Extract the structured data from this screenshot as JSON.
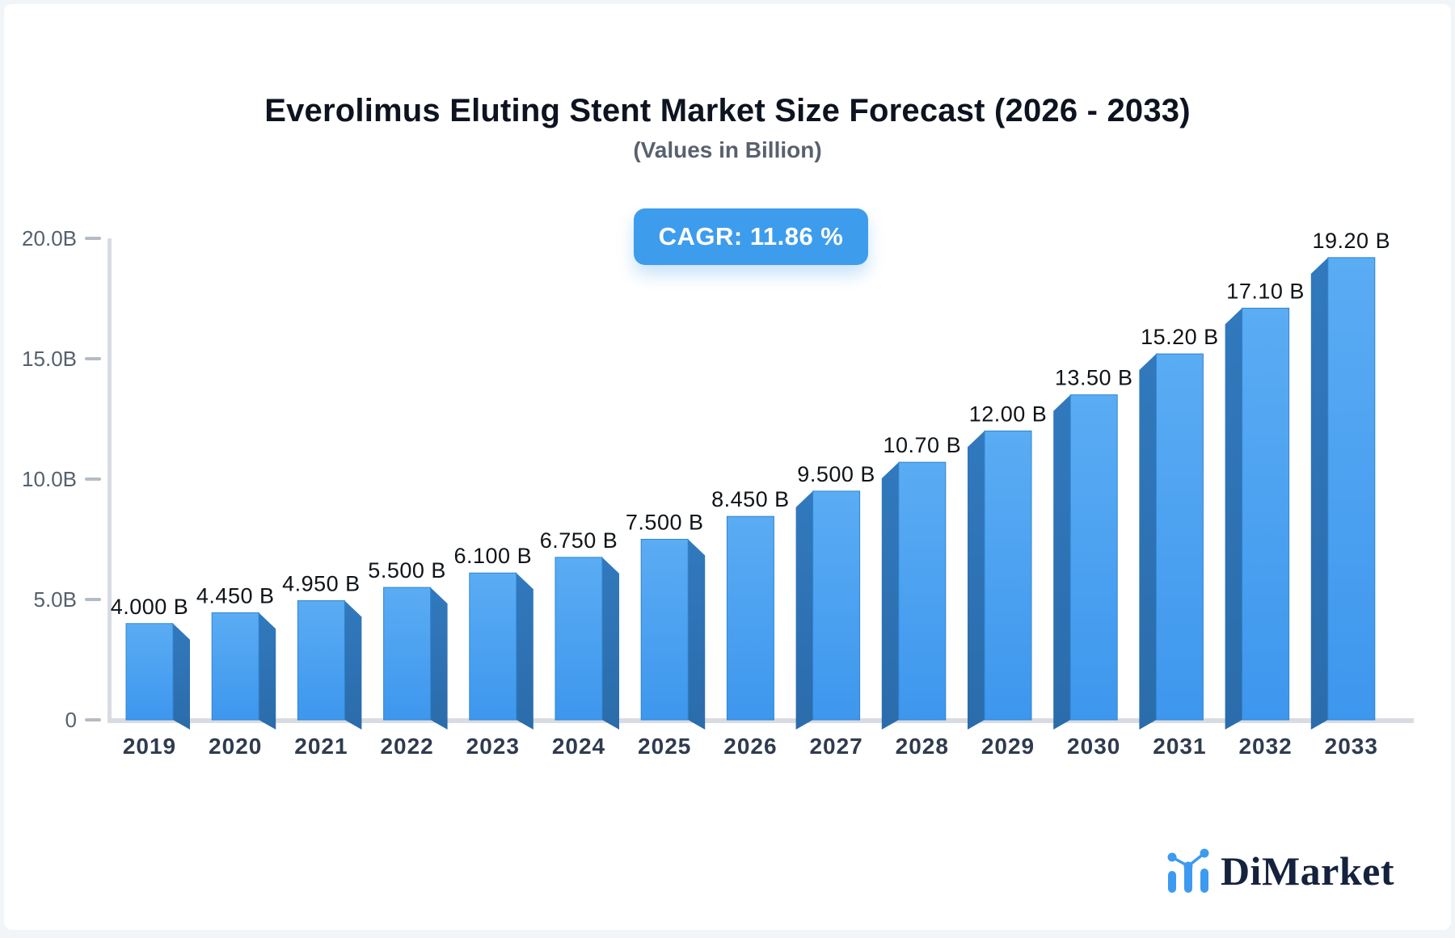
{
  "header": {
    "note": ""
  },
  "badge": {
    "label": "CAGR: 11.86 %"
  },
  "watermark": {
    "brand": "DiMarket",
    "icon": "bar-line-chart-icon"
  },
  "colors": {
    "bar_face_top": "#5aacf3",
    "bar_face_bottom": "#3e97ee",
    "bar_face_stroke": "#2f85d1",
    "bar_side_top": "#3179bd",
    "bar_side_bottom": "#2b6cab",
    "badge_bg": "#3e9cec",
    "axis_line": "#d8dce2",
    "tick_dash": "#b5bbc4",
    "title_text": "#0e1320",
    "subtitle_text": "#59616e",
    "value_label": "#0f1419",
    "year_label": "#2f3b4f",
    "ytick_label": "#55606e",
    "logo_text": "#15223e",
    "logo_icon": "#3d9af0"
  },
  "chart_data": {
    "type": "bar",
    "title": "Everolimus Eluting Stent Market Size Forecast (2026 - 2033)",
    "subtitle": "(Values in Billion)",
    "annotation": "CAGR: 11.86 %",
    "categories": [
      "2019",
      "2020",
      "2021",
      "2022",
      "2023",
      "2024",
      "2025",
      "2026",
      "2027",
      "2028",
      "2029",
      "2030",
      "2031",
      "2032",
      "2033"
    ],
    "values": [
      4.0,
      4.45,
      4.95,
      5.5,
      6.1,
      6.75,
      7.5,
      8.45,
      9.5,
      10.7,
      12.0,
      13.5,
      15.2,
      17.1,
      19.2
    ],
    "value_labels": [
      "4.000 B",
      "4.450 B",
      "4.950 B",
      "5.500 B",
      "6.100 B",
      "6.750 B",
      "7.500 B",
      "8.450 B",
      "9.500 B",
      "10.70 B",
      "12.00 B",
      "13.50 B",
      "15.20 B",
      "17.10 B",
      "19.20 B"
    ],
    "xlabel": "",
    "ylabel": "",
    "ylim": [
      0,
      20
    ],
    "yticks": [
      {
        "value": 0,
        "label": "0"
      },
      {
        "value": 5,
        "label": "5.0B"
      },
      {
        "value": 10,
        "label": "10.0B"
      },
      {
        "value": 15,
        "label": "15.0B"
      },
      {
        "value": 20,
        "label": "20.0B"
      }
    ],
    "grid": false,
    "legend": null,
    "bar_style": "3d-extruded-blue"
  }
}
